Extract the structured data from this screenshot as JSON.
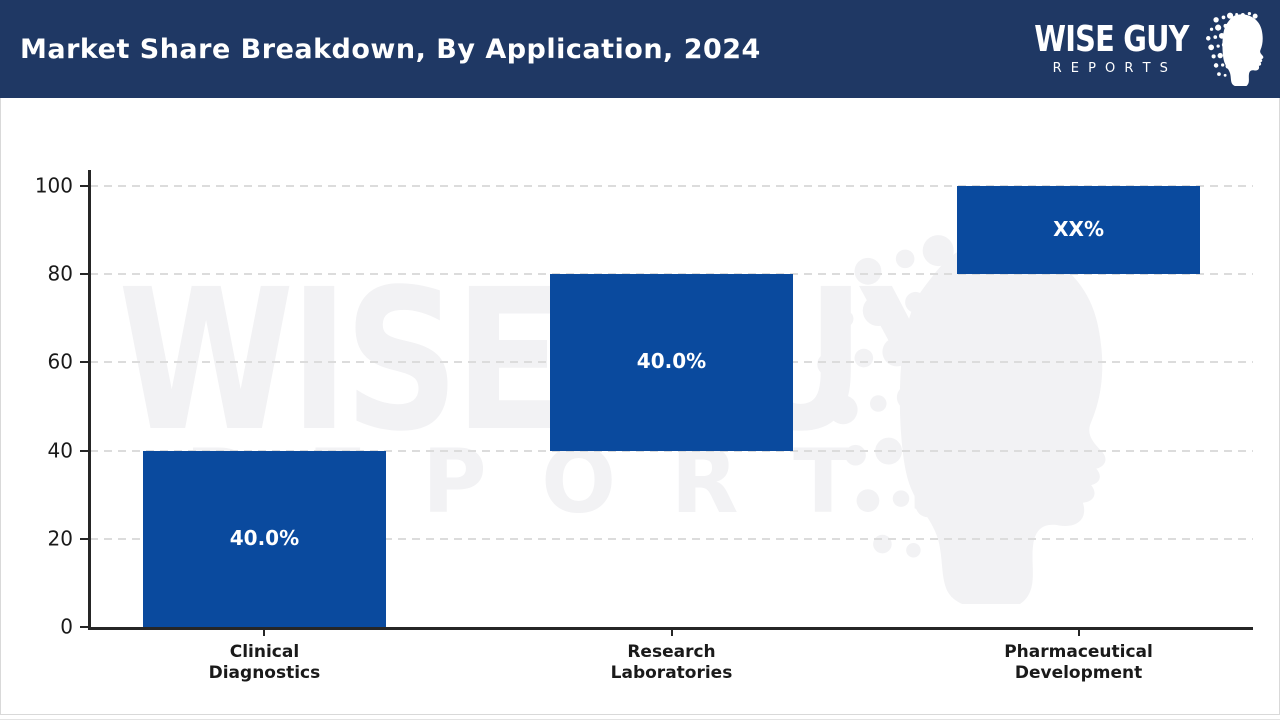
{
  "header": {
    "bg_color": "#1f3864",
    "title": "Market Share Breakdown, By Application, 2024",
    "logo": {
      "wordmark": "WISE GUY",
      "subtext": "R E P O R T S"
    }
  },
  "watermark": {
    "line1": "WISE GUY",
    "line2": "R E P O R T S"
  },
  "chart_data": {
    "type": "bar",
    "subtype": "waterfall-breakdown",
    "title": "Market Share Breakdown, By Application, 2024",
    "categories": [
      [
        "Clinical",
        "Diagnostics"
      ],
      [
        "Research",
        "Laboratories"
      ],
      [
        "Pharmaceutical",
        "Development"
      ]
    ],
    "segments": [
      {
        "category": "Clinical Diagnostics",
        "start": 0,
        "end": 40,
        "label": "40.0%"
      },
      {
        "category": "Research Laboratories",
        "start": 40,
        "end": 80,
        "label": "40.0%"
      },
      {
        "category": "Pharmaceutical Development",
        "start": 80,
        "end": 100,
        "label": "XX%"
      }
    ],
    "xlabel": "",
    "ylabel": "",
    "ylim": [
      0,
      100
    ],
    "yticks": [
      0,
      20,
      40,
      60,
      80,
      100
    ],
    "grid": "horizontal-dashed",
    "legend": "none",
    "bar_color": "#0a4a9e",
    "label_color": "#ffffff",
    "grid_color": "#dcdcdc",
    "axis_color": "#262626"
  }
}
